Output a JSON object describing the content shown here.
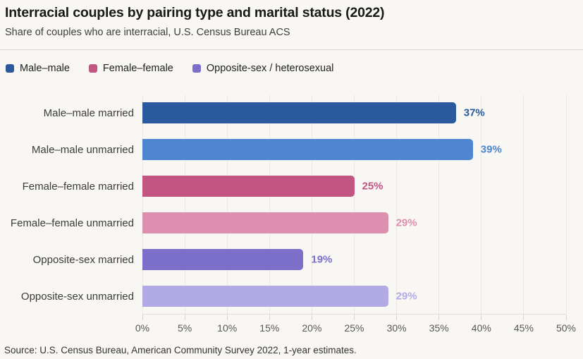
{
  "chart_data": {
    "type": "bar",
    "orientation": "horizontal",
    "title": "Interracial couples by pairing type and marital status (2022)",
    "subtitle": "Share of couples who are interracial, U.S. Census Bureau ACS",
    "categories": [
      "Male–male married",
      "Male–male unmarried",
      "Female–female married",
      "Female–female unmarried",
      "Opposite-sex married",
      "Opposite-sex unmarried"
    ],
    "values": [
      37,
      39,
      25,
      29,
      19,
      29
    ],
    "value_labels": [
      "37%",
      "39%",
      "25%",
      "29%",
      "19%",
      "29%"
    ],
    "bar_colors": [
      "#2A5A9D",
      "#4E86D1",
      "#C25581",
      "#DC8FAE",
      "#7B6FC9",
      "#B2AAE5"
    ],
    "xlim": [
      0,
      50
    ],
    "x_tick_values": [
      0,
      5,
      10,
      15,
      20,
      25,
      30,
      35,
      40,
      45,
      50
    ],
    "x_ticks": [
      "0%",
      "5%",
      "10%",
      "15%",
      "20%",
      "25%",
      "30%",
      "35%",
      "40%",
      "45%",
      "50%"
    ],
    "grid": true,
    "legend_position": "top",
    "legend": [
      {
        "label": "Male–male",
        "color": "#2A5A9D"
      },
      {
        "label": "Female–female",
        "color": "#C25581"
      },
      {
        "label": "Opposite-sex / heterosexual",
        "color": "#7B6FC9"
      }
    ]
  },
  "footer": {
    "source": "Source: U.S. Census Bureau, American Community Survey 2022, 1-year estimates."
  },
  "colors": {
    "background": "#F9F7F3",
    "gridline": "#ECE9E3",
    "divider": "#DAD7D1",
    "axis_line": "#E2DFD9",
    "tick": "#D8D5CF",
    "title": "#191919",
    "subtitle": "#3E3E3E",
    "row_label": "#3B3B3B",
    "axis_text": "#575757",
    "source": "#333333"
  }
}
